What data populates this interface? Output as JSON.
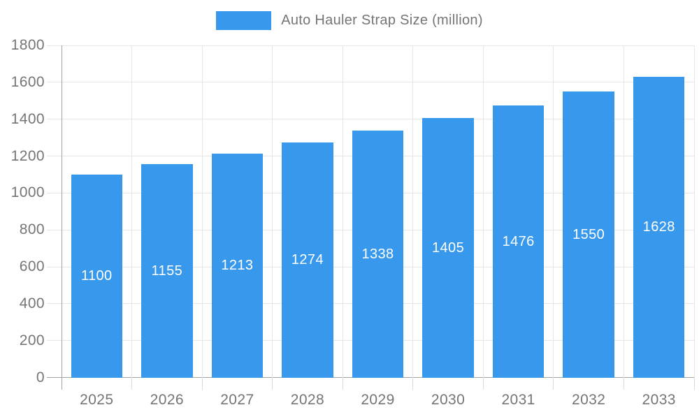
{
  "chart_data": {
    "type": "bar",
    "title": "",
    "xlabel": "",
    "ylabel": "",
    "legend": {
      "label": "Auto Hauler Strap Size (million)",
      "position": "top"
    },
    "categories": [
      "2025",
      "2026",
      "2027",
      "2028",
      "2029",
      "2030",
      "2031",
      "2032",
      "2033"
    ],
    "values": [
      1100,
      1155,
      1213,
      1274,
      1338,
      1405,
      1476,
      1550,
      1628
    ],
    "value_labels": [
      "1100",
      "1155",
      "1213",
      "1274",
      "1338",
      "1405",
      "1476",
      "1550",
      "1628"
    ],
    "ylim": [
      0,
      1800
    ],
    "ytick_step": 200,
    "ytick_labels": [
      "0",
      "200",
      "400",
      "600",
      "800",
      "1000",
      "1200",
      "1400",
      "1600",
      "1800"
    ],
    "grid": true,
    "colors": {
      "bar": "#3899ec",
      "bar_value_label": "#ffffff",
      "axis_text": "#757575",
      "axis_line": "#a3a3a3",
      "gridline": "#e6e6e6",
      "tick": "#d9d9d9",
      "background": "#ffffff"
    }
  }
}
